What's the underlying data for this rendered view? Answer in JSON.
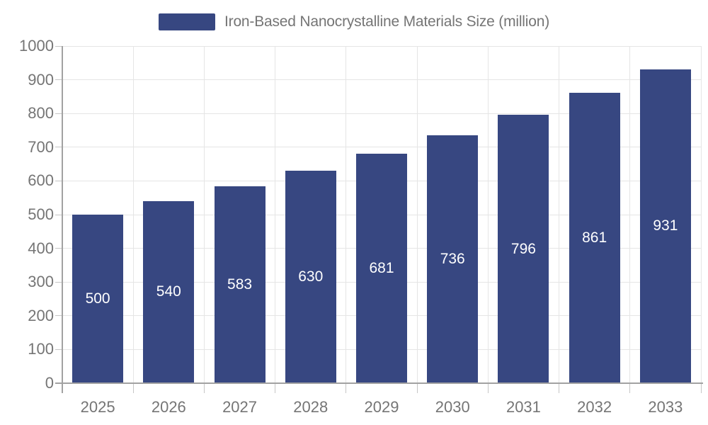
{
  "chart_data": {
    "type": "bar",
    "title": "Iron-Based Nanocrystalline Materials Size (million)",
    "legend_entries": [
      "Iron-Based Nanocrystalline Materials Size (million)"
    ],
    "legend_position": "top",
    "categories": [
      "2025",
      "2026",
      "2027",
      "2028",
      "2029",
      "2030",
      "2031",
      "2032",
      "2033"
    ],
    "values": [
      500,
      540,
      583,
      630,
      681,
      736,
      796,
      861,
      931
    ],
    "bar_value_labels": [
      "500",
      "540",
      "583",
      "630",
      "681",
      "736",
      "796",
      "861",
      "931"
    ],
    "xlabel": "",
    "ylabel": "",
    "ylim": [
      0,
      1000
    ],
    "ytick_interval": 100,
    "ytick_labels": [
      "0",
      "100",
      "200",
      "300",
      "400",
      "500",
      "600",
      "700",
      "800",
      "900",
      "1000"
    ],
    "grid": true,
    "colors": {
      "bar": "#374781",
      "bar_label": "#ffffff",
      "axis_text": "#757575",
      "grid_line": "#e5e5e5",
      "axis_line": "#a2a2a2",
      "tick_line": "#c6c6c6",
      "background": "#ffffff"
    }
  }
}
